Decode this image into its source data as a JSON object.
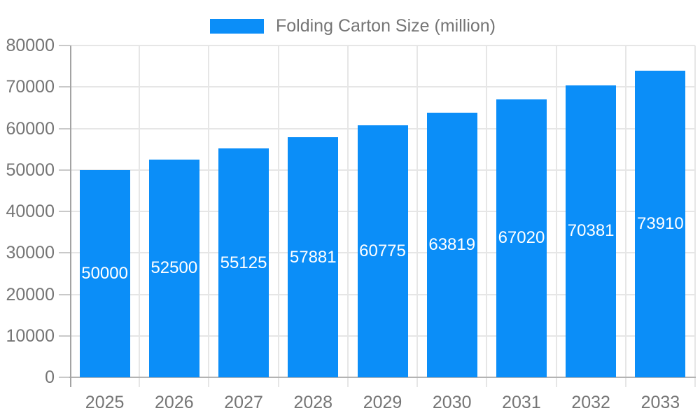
{
  "chart_data": {
    "type": "bar",
    "legend_label": "Folding Carton Size (million)",
    "legend_position": "top",
    "categories": [
      "2025",
      "2026",
      "2027",
      "2028",
      "2029",
      "2030",
      "2031",
      "2032",
      "2033"
    ],
    "values": [
      50000,
      52500,
      55125,
      57881,
      60775,
      63819,
      67020,
      70381,
      73910
    ],
    "xlabel": "",
    "ylabel": "",
    "ylim": [
      0,
      80000
    ],
    "ytick_step": 10000,
    "ytick_labels": [
      "0",
      "10000",
      "20000",
      "30000",
      "40000",
      "50000",
      "60000",
      "70000",
      "80000"
    ],
    "grid": true,
    "colors": {
      "bar": "#0b8ef8",
      "value_label_text": "#ffffff",
      "axis_text": "#757575",
      "legend_text": "#757575",
      "gridline": "#e6e6e6",
      "tick": "#c9c9c9",
      "x_axis_line": "#b3b3b3",
      "y_axis_line": "#a3a3a3",
      "background": "#ffffff"
    }
  }
}
